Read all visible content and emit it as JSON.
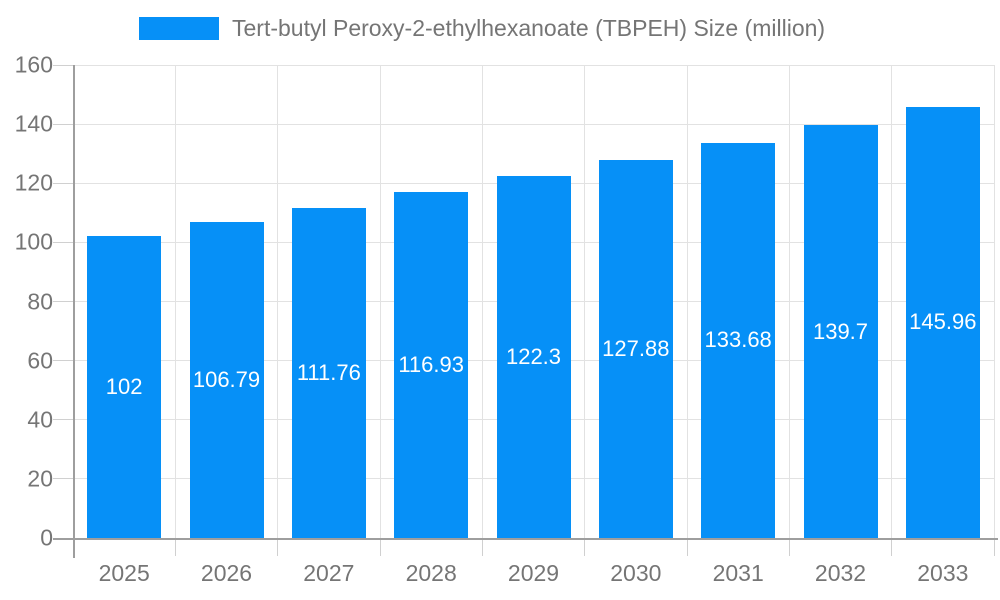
{
  "chart_data": {
    "type": "bar",
    "title": "Tert-butyl Peroxy-2-ethylhexanoate (TBPEH) Size (million)",
    "categories": [
      "2025",
      "2026",
      "2027",
      "2028",
      "2029",
      "2030",
      "2031",
      "2032",
      "2033"
    ],
    "values": [
      102,
      106.79,
      111.76,
      116.93,
      122.3,
      127.88,
      133.68,
      139.7,
      145.96
    ],
    "data_labels": [
      "102",
      "106.79",
      "111.76",
      "116.93",
      "122.3",
      "127.88",
      "133.68",
      "139.7",
      "145.96"
    ],
    "ytick_labels": [
      "0",
      "20",
      "40",
      "60",
      "80",
      "100",
      "120",
      "140",
      "160"
    ],
    "ylim": [
      0,
      160
    ],
    "ytick_step": 20,
    "grid": true,
    "legend_position": "top",
    "xlabel": "",
    "ylabel": "",
    "colors": {
      "bar": "#0690f7",
      "grid": "#e2e2e2",
      "axis": "#9e9e9e",
      "tick": "#d0d0d0",
      "axis_text": "#757575",
      "title_text": "#757575",
      "value_text": "#ffffff",
      "background": "#ffffff"
    }
  }
}
